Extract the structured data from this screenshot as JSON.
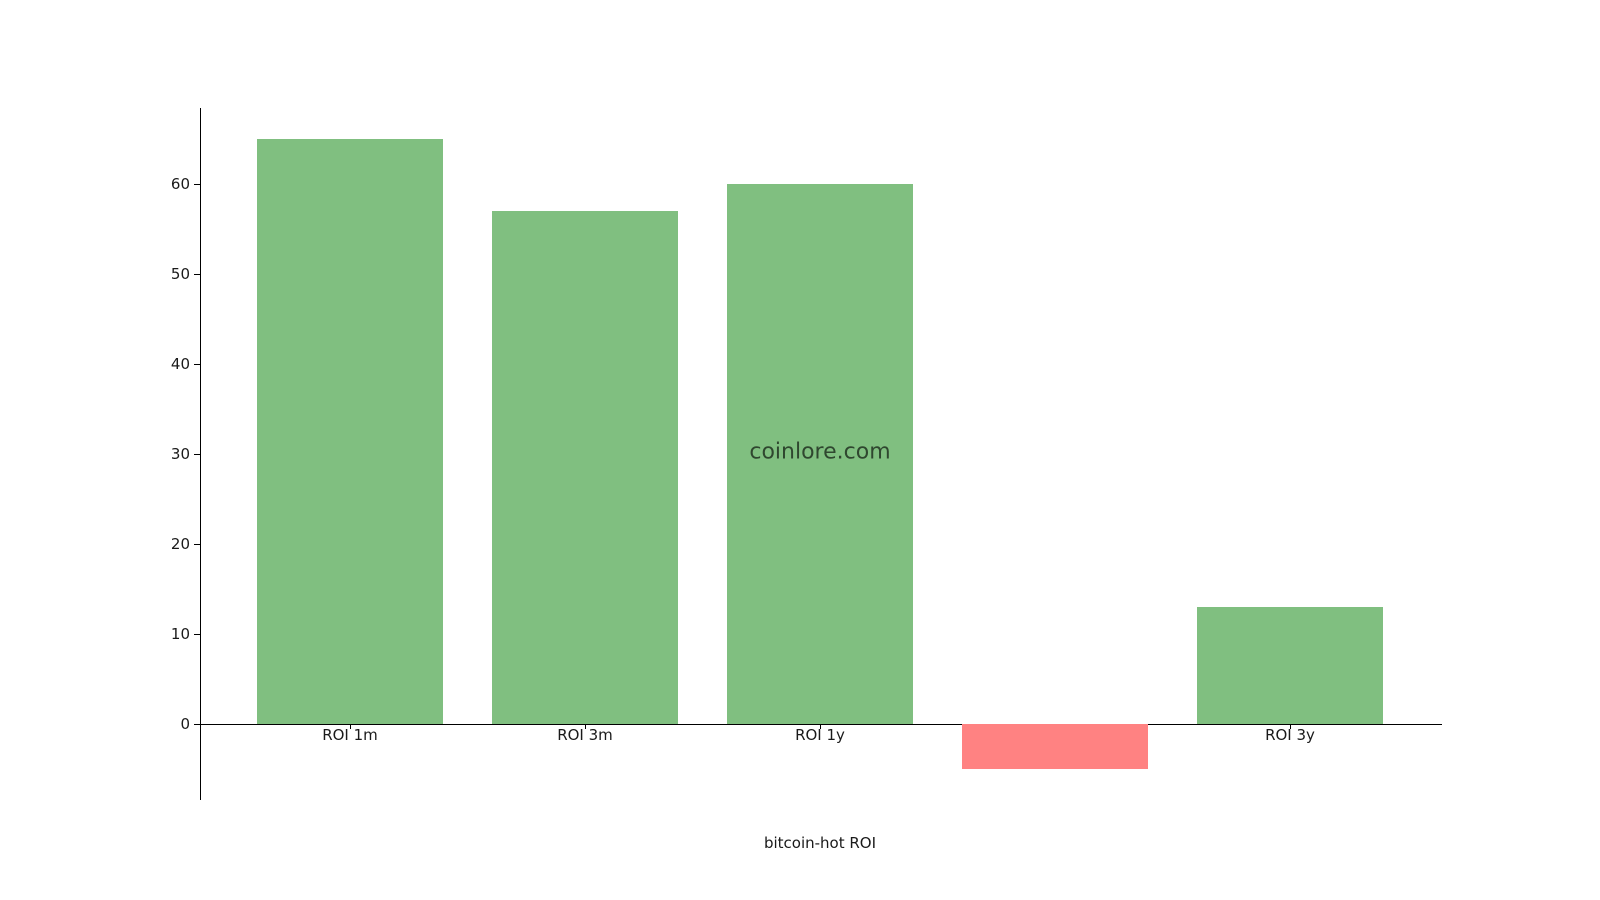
{
  "chart_data": {
    "type": "bar",
    "title": "bitcoin-hot ROI",
    "watermark": "coinlore.com",
    "categories": [
      "ROI 1m",
      "ROI 3m",
      "ROI 1y",
      "",
      "ROI 3y"
    ],
    "values": [
      65,
      57,
      60,
      -5,
      13
    ],
    "series": [
      {
        "name": "bitcoin-hot ROI",
        "values": [
          65,
          57,
          60,
          -5,
          13
        ]
      }
    ],
    "bar_colors": [
      "#80bf80",
      "#80bf80",
      "#80bf80",
      "#ff8282",
      "#80bf80"
    ],
    "yticks": [
      0,
      10,
      20,
      30,
      40,
      50,
      60
    ],
    "ylim": [
      -8.5,
      68.5
    ],
    "xlabel": "",
    "ylabel": "",
    "grid": false,
    "legend_position": "none"
  },
  "colors": {
    "bar_positive": "#80bf80",
    "bar_negative": "#ff8282",
    "axis": "#000000",
    "text": "#1a1a1a",
    "background": "#ffffff"
  }
}
